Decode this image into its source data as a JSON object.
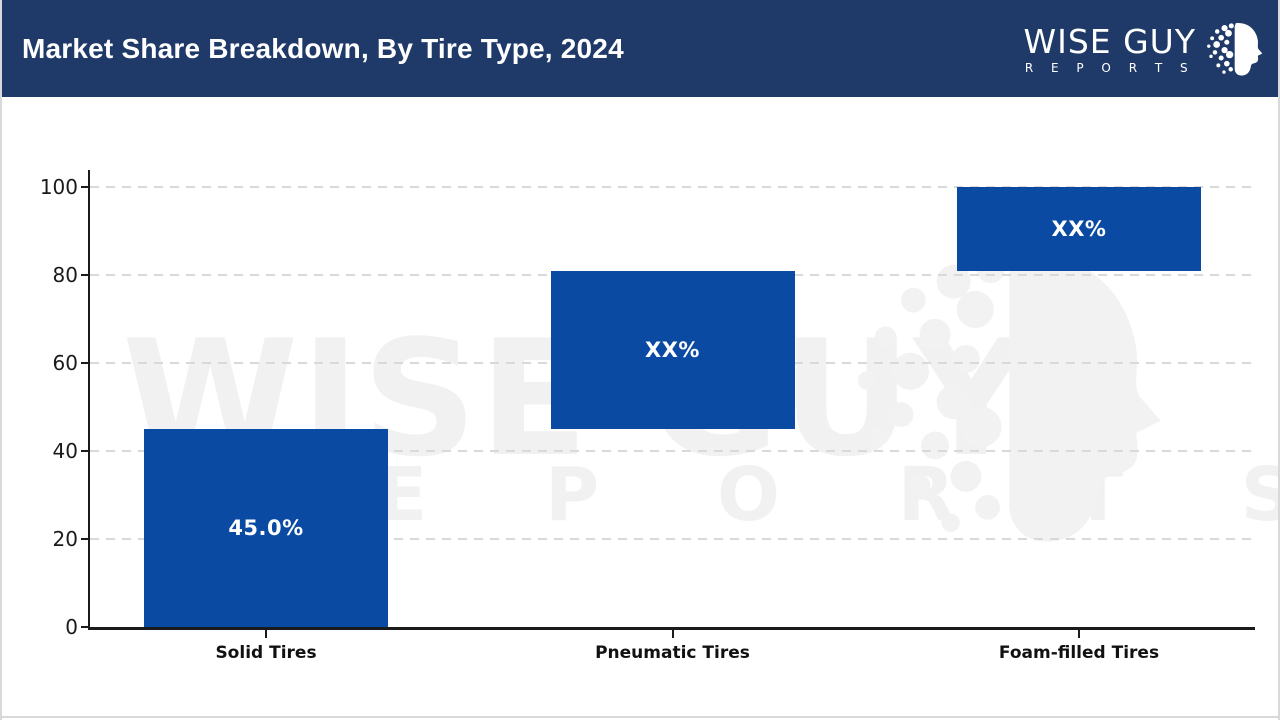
{
  "header": {
    "title": "Market Share Breakdown, By Tire Type, 2024",
    "bg_color": "#1f3a68",
    "logo": {
      "wordmark": "WISE GUY",
      "subtext": "R E P O R T S",
      "icon": "dotted-head-profile-icon"
    }
  },
  "watermark": {
    "wordmark": "WISE GUY",
    "subtext": "R E P O R T S",
    "icon": "dotted-head-profile-icon"
  },
  "chart_data": {
    "type": "bar",
    "subtype": "floating_segment_bars",
    "title": "Market Share Breakdown, By Tire Type, 2024",
    "categories": [
      "Solid Tires",
      "Pneumatic Tires",
      "Foam-filled Tires"
    ],
    "segments": [
      {
        "category": "Solid Tires",
        "start": 0,
        "end": 45,
        "label": "45.0%"
      },
      {
        "category": "Pneumatic Tires",
        "start": 45,
        "end": 81,
        "label": "XX%"
      },
      {
        "category": "Foam-filled Tires",
        "start": 81,
        "end": 100,
        "label": "XX%"
      }
    ],
    "ylim": [
      0,
      100
    ],
    "yticks": [
      0,
      20,
      40,
      60,
      80,
      100
    ],
    "grid": "horizontal-dashed",
    "legend": "none",
    "bar_color": "#0a4aa2",
    "bar_label_color": "#ffffff",
    "grid_color": "#d9d9d9",
    "axis_color": "#1a1a1a"
  }
}
